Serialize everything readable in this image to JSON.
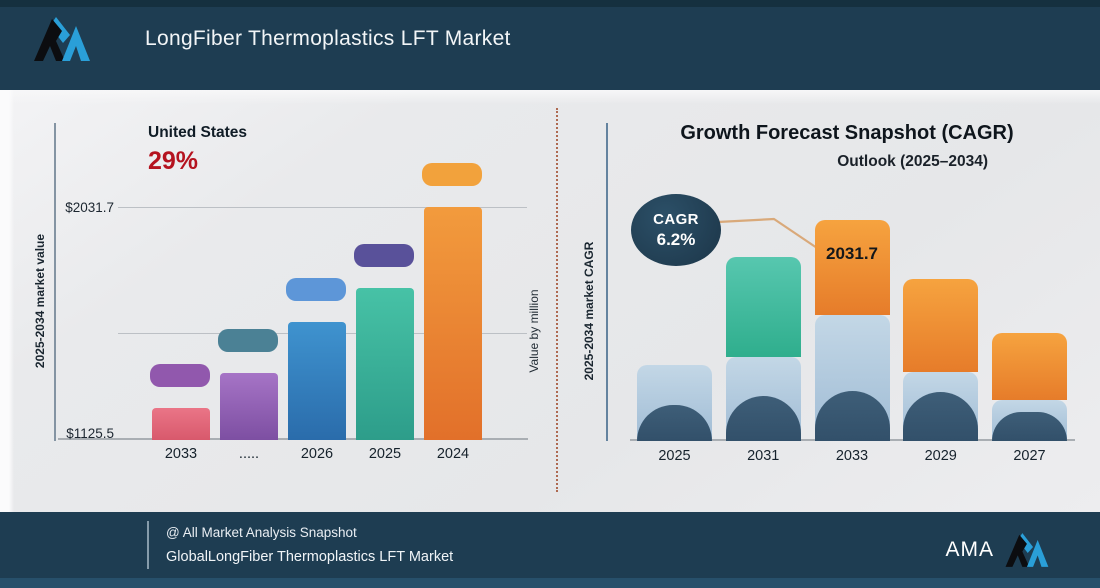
{
  "header": {
    "title": "LongFiber Thermoplastics LFT Market",
    "logo": "ama-mountain-logo"
  },
  "footer": {
    "line1": "@ All Market Analysis Snapshot",
    "line2": "GlobalLongFiber Thermoplastics LFT Market",
    "brand": "AMA",
    "logo": "ama-mountain-logo"
  },
  "colors": {
    "header_bg": "#1e3d52",
    "accent_red": "#b5131f",
    "badge_navy": "#24455c",
    "connector_tan": "#d9a97a",
    "content_bg": "#e9eaec"
  },
  "chart_data": [
    {
      "type": "bar",
      "panel": "left",
      "title": "United States",
      "highlight": "29%",
      "ylabel": "2025-2034 market value",
      "ylabel_right": "Value by million",
      "yticks": [
        {
          "label": "$2031.7",
          "value": 2031.7
        },
        {
          "label": "$1125.5",
          "value": 1125.5
        }
      ],
      "ylim": [
        1097,
        2100
      ],
      "grid": true,
      "categories": [
        "2033",
        ".....",
        "2026",
        "2025",
        "2024"
      ],
      "values": [
        1226,
        1366,
        1571,
        1707,
        2031.7
      ],
      "values_note": "estimated from gridlines; only $1125.5 and $2031.7 are labeled",
      "bar_gradients": [
        [
          "#ea7587",
          "#d8596c"
        ],
        [
          "#a674c6",
          "#7d4fa2"
        ],
        [
          "#3f93cf",
          "#2a6cab"
        ],
        [
          "#47c2a6",
          "#2d9d8a"
        ],
        [
          "#f29b3d",
          "#e2702a"
        ]
      ],
      "cap_colors": [
        "#9158ad",
        "#4b8195",
        "#5d96d8",
        "#59519a",
        "#f2a23c"
      ]
    },
    {
      "type": "stacked-bar",
      "panel": "right",
      "title": "Growth Forecast Snapshot (CAGR)",
      "subtitle": "Outlook (2025–2034)",
      "ylabel": "2025-2034 market CAGR",
      "badge": {
        "line1": "CAGR",
        "line2": "6.2%"
      },
      "annotation": {
        "text": "2031.7",
        "category": "2033"
      },
      "categories": [
        "2025",
        "2031",
        "2033",
        "2029",
        "2027"
      ],
      "series": [
        {
          "name": "base-dark",
          "color_class": "rseg-dark",
          "values": [
            36,
            45,
            50,
            49,
            29
          ]
        },
        {
          "name": "mid-lightblue",
          "color_class": "rseg-light",
          "values": [
            40,
            39,
            76,
            20,
            12
          ]
        },
        {
          "name": "top-segment",
          "values": [
            0,
            100,
            95,
            93,
            67
          ]
        }
      ],
      "top_segment_styles": [
        null,
        "rseg-teal",
        "rseg-orange",
        "rseg-orange",
        "rseg-orange"
      ],
      "values_note": "no numeric axis shown; segment values are estimated relative heights (px)"
    }
  ]
}
